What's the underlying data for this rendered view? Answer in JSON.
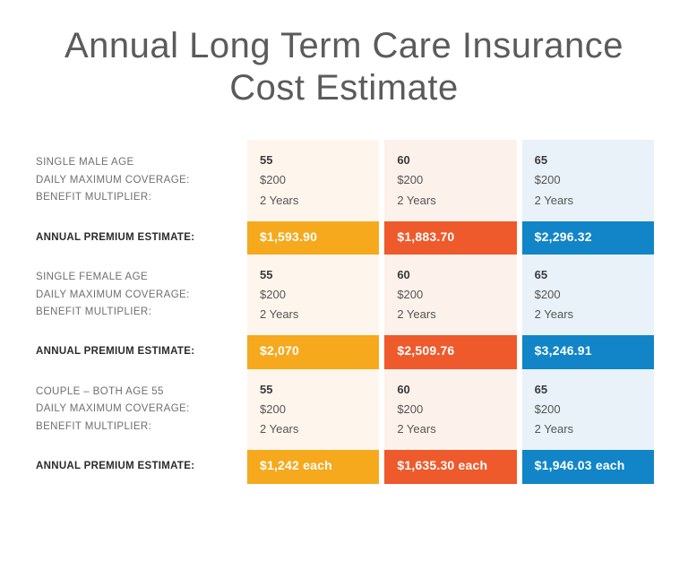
{
  "title": "Annual Long Term Care Insurance Cost Estimate",
  "colors": {
    "col0_tint": "#fef6ed",
    "col1_tint": "#fdf1eb",
    "col2_tint": "#e9f2f8",
    "col0_solid": "#f6a91d",
    "col1_solid": "#ee5a2c",
    "col2_solid": "#1185c7",
    "title_color": "#5b5b5b",
    "label_color": "#6f6f6f",
    "value_color": "#555555",
    "premium_label_color": "#2b2b2b"
  },
  "row_labels": {
    "age_male": "SINGLE MALE AGE",
    "age_female": "SINGLE FEMALE AGE",
    "age_couple": "COUPLE – BOTH AGE 55",
    "coverage": "DAILY MAXIMUM COVERAGE:",
    "multiplier": "BENEFIT MULTIPLIER:",
    "premium": "ANNUAL PREMIUM ESTIMATE:"
  },
  "shared": {
    "coverage_value": "$200",
    "multiplier_value": "2 Years",
    "ages": [
      "55",
      "60",
      "65"
    ]
  },
  "groups": [
    {
      "age_label_key": "age_male",
      "premiums": [
        "$1,593.90",
        "$1,883.70",
        "$2,296.32"
      ]
    },
    {
      "age_label_key": "age_female",
      "premiums": [
        "$2,070",
        "$2,509.76",
        "$3,246.91"
      ]
    },
    {
      "age_label_key": "age_couple",
      "premiums": [
        "$1,242 each",
        "$1,635.30 each",
        "$1,946.03 each"
      ]
    }
  ]
}
